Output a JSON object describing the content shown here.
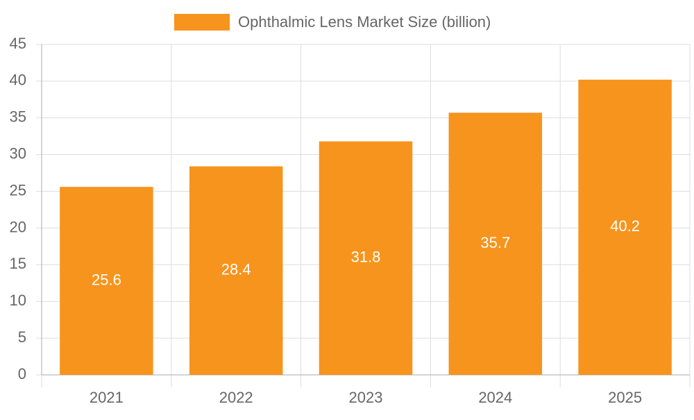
{
  "chart_data": {
    "type": "bar",
    "legend": "Ophthalmic Lens Market Size (billion)",
    "categories": [
      "2021",
      "2022",
      "2023",
      "2024",
      "2025"
    ],
    "values": [
      25.6,
      28.4,
      31.8,
      35.7,
      40.2
    ],
    "color": "#f7941d",
    "ylim": [
      0,
      45
    ],
    "yticks": [
      0,
      5,
      10,
      15,
      20,
      25,
      30,
      35,
      40,
      45
    ],
    "grid": true
  }
}
